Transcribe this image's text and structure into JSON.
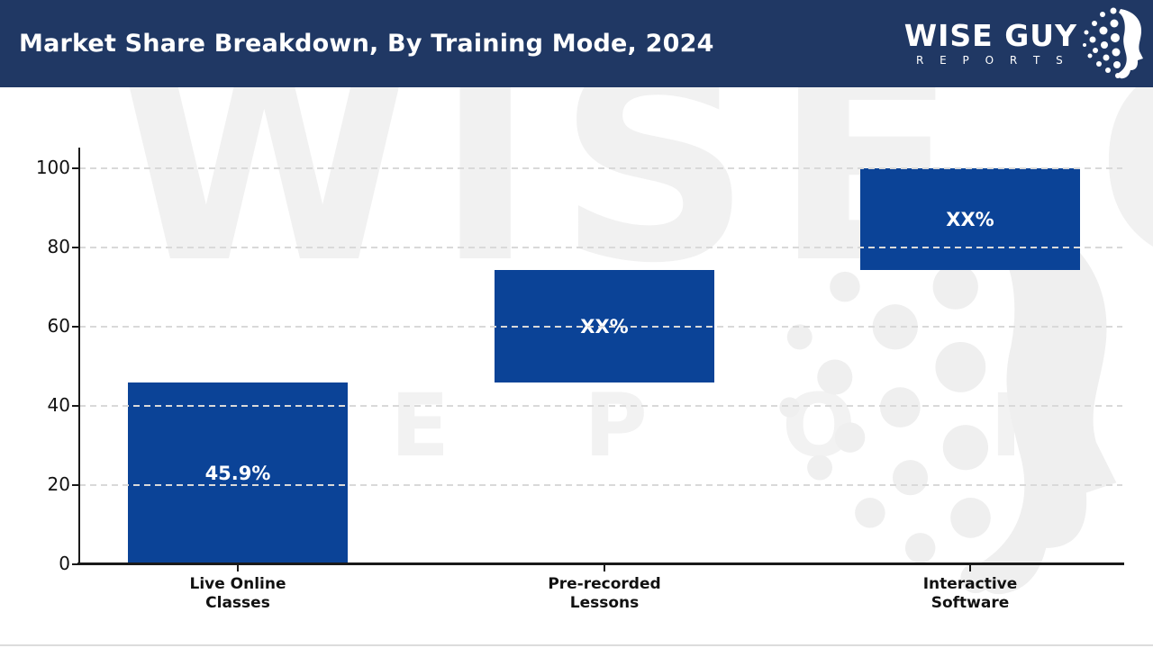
{
  "header": {
    "title": "Market Share Breakdown, By Training Mode, 2024",
    "logo": {
      "name": "WISE GUY",
      "sub": "R E P O R T S"
    }
  },
  "watermark": {
    "big_text": "WISE GUY",
    "sub_text": "R E P O R T S"
  },
  "chart_data": {
    "type": "bar",
    "variant": "waterfall-market-share",
    "title": "Market Share Breakdown, By Training Mode, 2024",
    "categories": [
      "Live Online Classes",
      "Pre-recorded Lessons",
      "Interactive Software"
    ],
    "category_lines": [
      [
        "Live Online",
        "Classes"
      ],
      [
        "Pre-recorded",
        "Lessons"
      ],
      [
        "Interactive",
        "Software"
      ]
    ],
    "bars": [
      {
        "label": "45.9%",
        "start": 0,
        "end": 45.9
      },
      {
        "label": "XX%",
        "start": 45.9,
        "end": 74.3
      },
      {
        "label": "XX%",
        "start": 74.3,
        "end": 100
      }
    ],
    "xlabel": "",
    "ylabel": "",
    "ylim": [
      0,
      105
    ],
    "yticks": [
      0,
      20,
      40,
      60,
      80,
      100
    ],
    "grid": "horizontal-dashed",
    "legend": "none",
    "colors": {
      "bar": "#0b4397",
      "bar_label": "#ffffff",
      "grid": "#d9d9d9",
      "axis": "#1a1a1a",
      "header_bg": "#203864",
      "text": "#111111",
      "watermark": "#f1f1f1"
    }
  }
}
